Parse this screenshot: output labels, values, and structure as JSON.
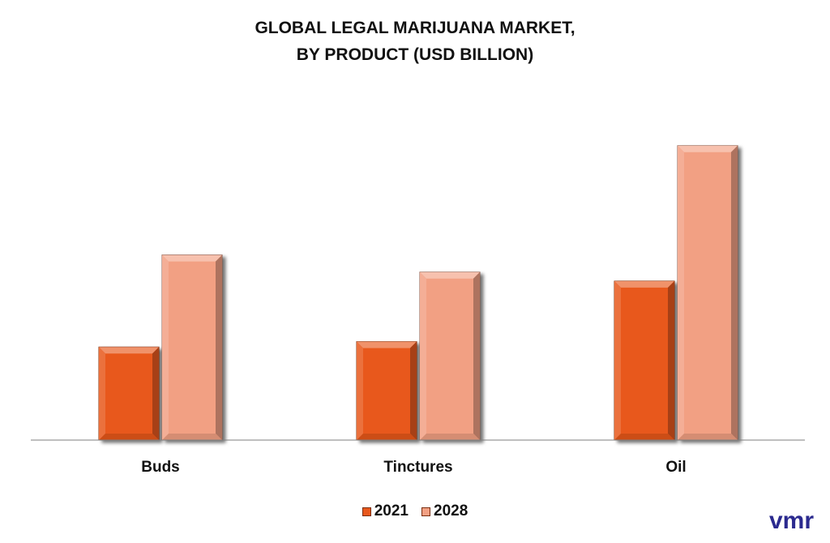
{
  "chart_data": {
    "type": "bar",
    "title_lines": [
      "GLOBAL LEGAL MARIJUANA MARKET,",
      "BY PRODUCT (USD BILLION)"
    ],
    "categories": [
      "Buds",
      "Tinctures",
      "Oil"
    ],
    "series": [
      {
        "name": "2021",
        "values": [
          10.3,
          10.9,
          17.6
        ],
        "color": "#e8581c"
      },
      {
        "name": "2028",
        "values": [
          20.5,
          18.6,
          32.6
        ],
        "color": "#f2a083"
      }
    ],
    "ylim": [
      0,
      35
    ],
    "grid": false,
    "legend_position": "bottom"
  },
  "logo_text": "vmr",
  "colors": {
    "logo": "#2b2a8f",
    "axis": "#7f7f7f"
  }
}
